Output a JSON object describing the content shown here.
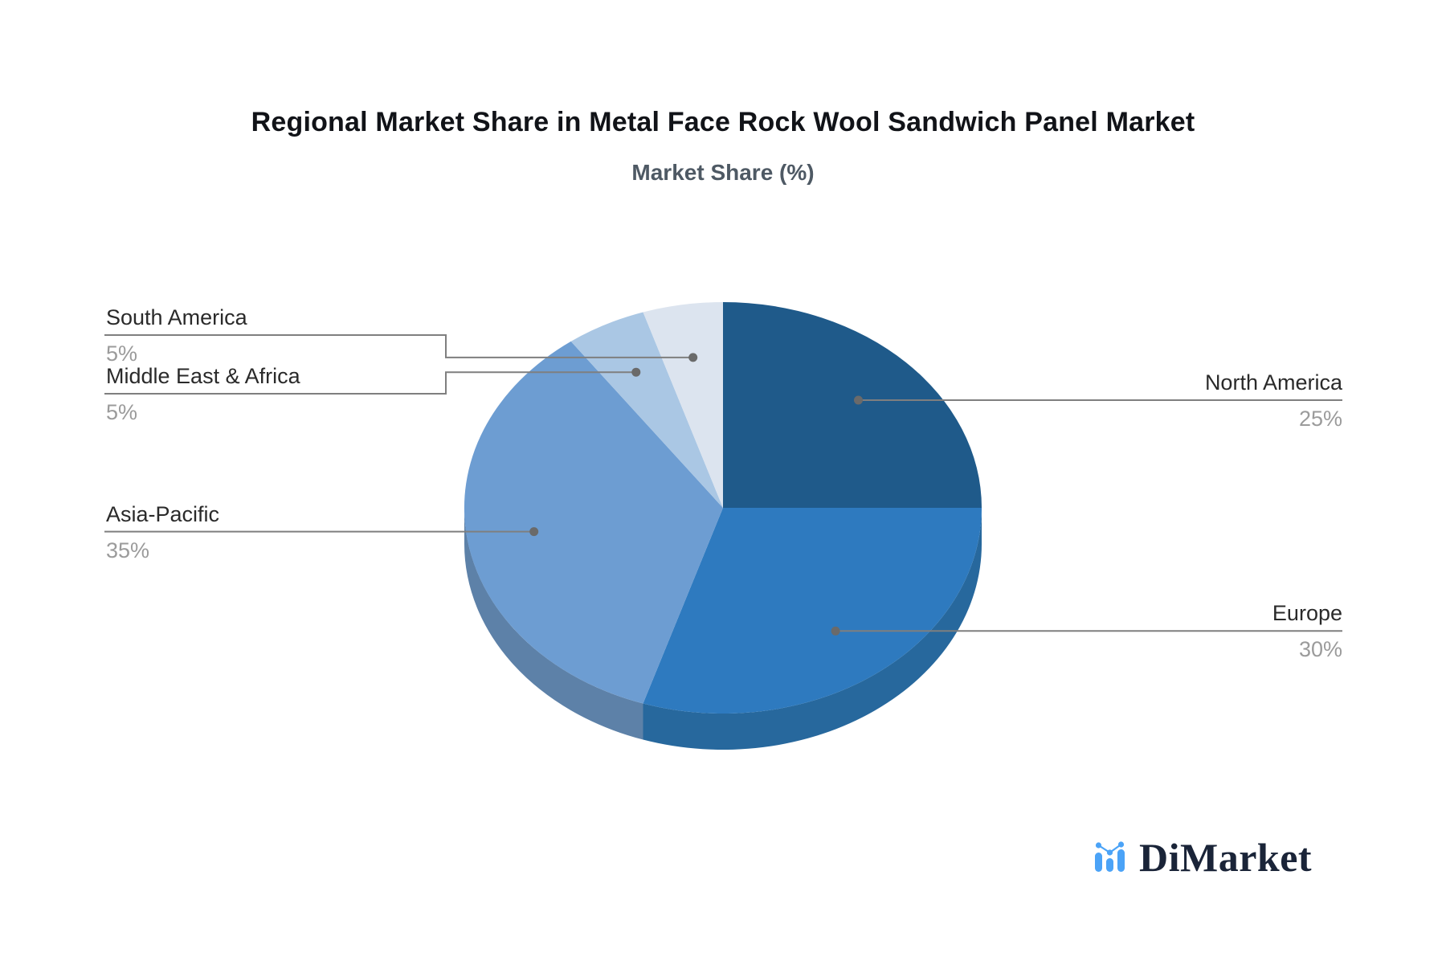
{
  "title": "Regional Market Share in Metal Face Rock Wool Sandwich Panel Market",
  "subtitle": "Market Share (%)",
  "chart_data": {
    "type": "pie",
    "title": "Regional Market Share in Metal Face Rock Wool Sandwich Panel Market",
    "subtitle": "Market Share (%)",
    "unit": "%",
    "effect": "3d",
    "direction": "clockwise",
    "start_angle_deg": 0,
    "legend_position": "callout-labels",
    "labels": [
      "North America",
      "Europe",
      "Asia-Pacific",
      "Middle East & Africa",
      "South America"
    ],
    "values": [
      25,
      30,
      35,
      5,
      5
    ],
    "display_values": [
      "25%",
      "30%",
      "35%",
      "5%",
      "5%"
    ],
    "colors": [
      "#1f5a8a",
      "#2e7abf",
      "#6d9dd2",
      "#aac7e4",
      "#dce4ef"
    ],
    "side_colors": [
      "#1a4c75",
      "#27689d",
      "#5d81a8",
      "#8fa9c6",
      "#b9c2d1"
    ]
  },
  "callout": {
    "line_color": "#7f7f7f",
    "dot_color": "#6a6a6a",
    "label_color": "#2a2a2a",
    "value_color": "#9b9b9b"
  },
  "watermark": {
    "brand": "DiMarket",
    "icon": "bar-line-chart-icon",
    "icon_color": "#4ba3f7",
    "text_color": "#1a2438"
  }
}
